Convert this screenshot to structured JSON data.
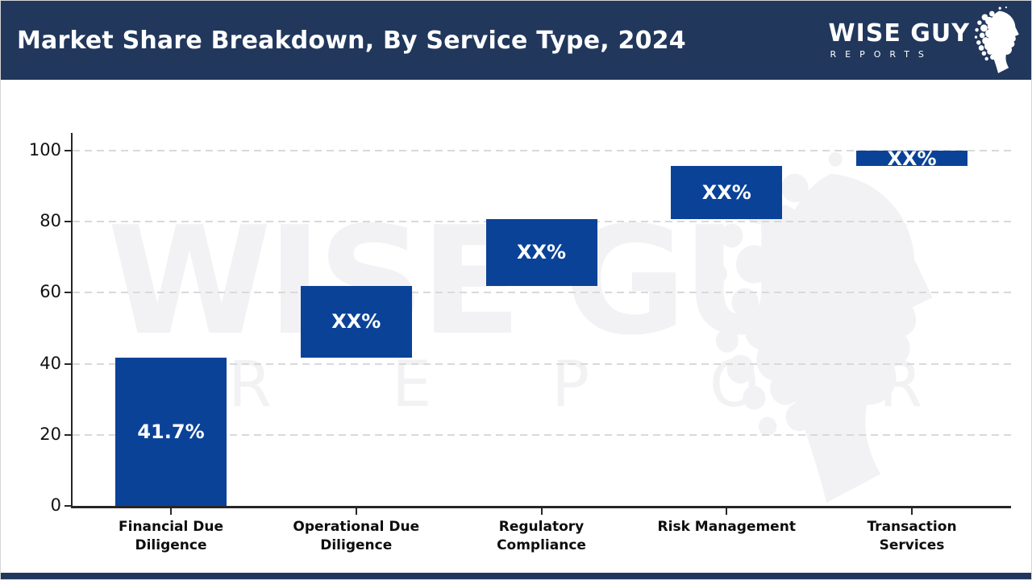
{
  "header": {
    "title": "Market Share Breakdown, By Service Type, 2024",
    "logo": {
      "line1": "WISE GUY",
      "line2": "REPORTS"
    }
  },
  "watermark": {
    "line1": "WISE GUY",
    "line2": "R E P O R T S"
  },
  "chart_data": {
    "type": "bar",
    "subtype": "waterfall",
    "title": "Market Share Breakdown, By Service Type, 2024",
    "xlabel": "",
    "ylabel": "",
    "ylim": [
      0,
      105
    ],
    "yticks": [
      0,
      20,
      40,
      60,
      80,
      100
    ],
    "grid": "horizontal-dashed",
    "legend": "none",
    "categories": [
      "Financial Due\nDiligence",
      "Operational Due\nDiligence",
      "Regulatory\nCompliance",
      "Risk Management",
      "Transaction\nServices"
    ],
    "bars": [
      {
        "category": "Financial Due\nDiligence",
        "label": "41.7%",
        "start": 0,
        "end": 41.7
      },
      {
        "category": "Operational Due\nDiligence",
        "label": "XX%",
        "start": 41.7,
        "end": 62.0
      },
      {
        "category": "Regulatory\nCompliance",
        "label": "XX%",
        "start": 62.0,
        "end": 80.7
      },
      {
        "category": "Risk Management",
        "label": "XX%",
        "start": 80.7,
        "end": 95.6
      },
      {
        "category": "Transaction\nServices",
        "label": "XX%",
        "start": 95.6,
        "end": 100
      }
    ]
  },
  "colors": {
    "header_bg": "#21375c",
    "footer_bg": "#21375c",
    "bar": "#0a4298",
    "bar_label": "#ffffff",
    "axis": "#262626",
    "grid": "#d9d9d9",
    "tick_text": "#111111",
    "watermark": "#f2f2f4",
    "title_text": "#ffffff"
  }
}
